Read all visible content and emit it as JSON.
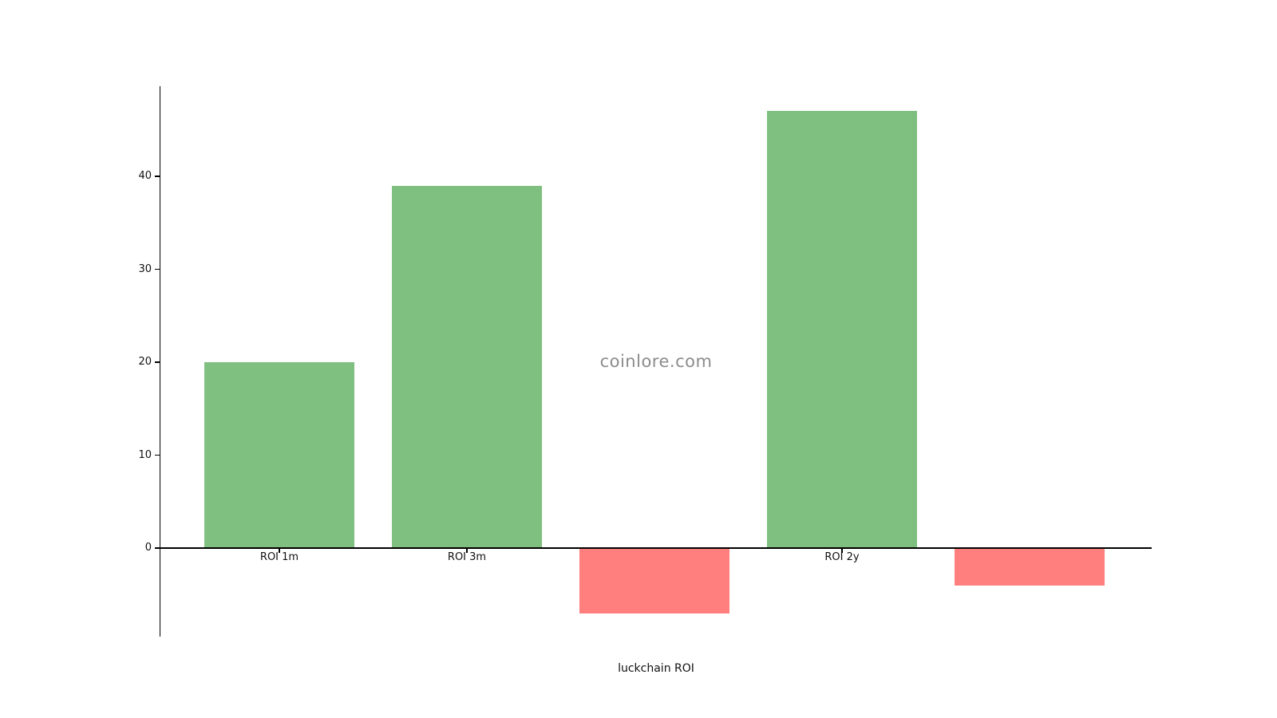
{
  "page": {
    "background": "#ffffff"
  },
  "chart_data": {
    "type": "bar",
    "title": "luckchain ROI",
    "watermark": "coinlore.com",
    "categories": [
      "ROI 1m",
      "ROI 3m",
      "",
      "ROI 2y",
      ""
    ],
    "values": [
      20,
      39,
      -7,
      47,
      -4
    ],
    "bar_colors": [
      "#7fbf7f",
      "#7fbf7f",
      "#ff7f7f",
      "#7fbf7f",
      "#ff7f7f"
    ],
    "positive_color": "#7fbf7f",
    "negative_color": "#ff7f7f",
    "yticks": [
      0,
      10,
      20,
      30,
      40
    ],
    "ylim": [
      -9.5,
      49.7
    ],
    "xlabel": "",
    "ylabel": "",
    "grid": false,
    "legend": "none",
    "axis_color": "#000000",
    "tick_label_color": "#111111",
    "watermark_color": "#8c8c8c"
  }
}
